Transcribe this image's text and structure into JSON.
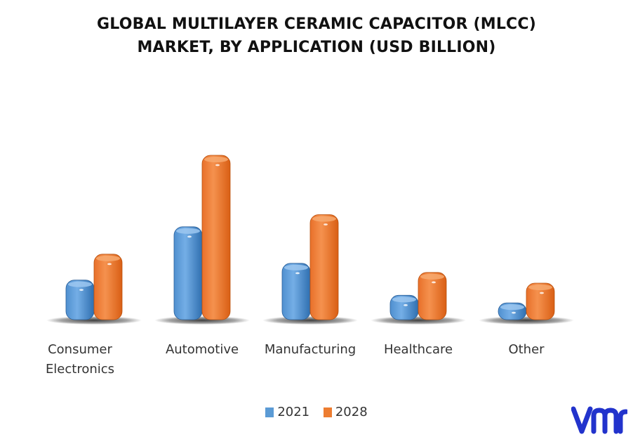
{
  "title": {
    "line1": "GLOBAL MULTILAYER CERAMIC CAPACITOR (MLCC)",
    "line2": "MARKET, BY APPLICATION (USD BILLION)"
  },
  "chart_data": {
    "type": "bar",
    "style": "3d-cylinder",
    "categories": [
      "Consumer Electronics",
      "Automotive",
      "Manufacturing",
      "Healthcare",
      "Other"
    ],
    "category_label_lines": [
      [
        "Consumer",
        "Electronics"
      ],
      [
        "Automotive"
      ],
      [
        "Manufacturing"
      ],
      [
        "Healthcare"
      ],
      [
        "Other"
      ]
    ],
    "series": [
      {
        "name": "2021",
        "color": "#5b9bd5",
        "values": [
          2.6,
          6.1,
          3.7,
          1.6,
          1.1
        ]
      },
      {
        "name": "2028",
        "color": "#ed7d31",
        "values": [
          4.3,
          10.8,
          6.9,
          3.1,
          2.4
        ]
      }
    ],
    "ylim": [
      0,
      12
    ],
    "grid": false,
    "axis_labels_shown": false,
    "legend_position": "bottom"
  },
  "logo": {
    "name": "vmr-logo",
    "color": "#2233cc"
  }
}
